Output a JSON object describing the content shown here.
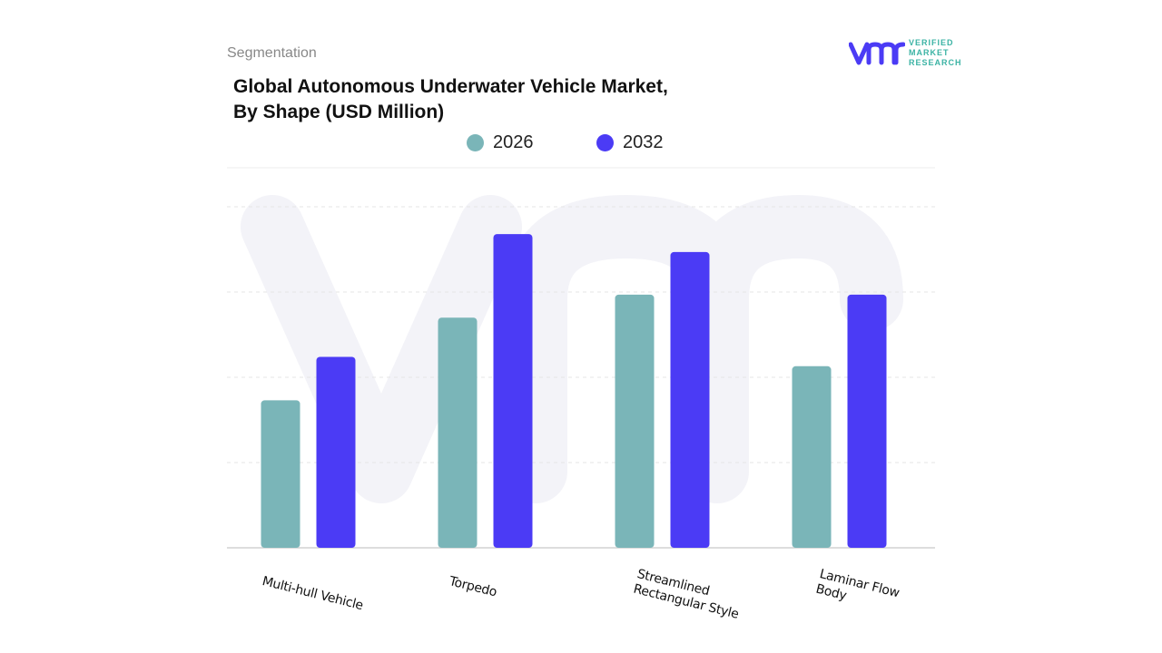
{
  "header": {
    "section": "Segmentation",
    "title_line1": "Global Autonomous Underwater Vehicle Market,",
    "title_line2": "By Shape (USD Million)"
  },
  "logo": {
    "mark": "vmr",
    "line1": "VERIFIED",
    "line2": "MARKET",
    "line3": "RESEARCH",
    "color": "#4b3bf5"
  },
  "chart_data": {
    "type": "bar",
    "title": "Global Autonomous Underwater Vehicle Market, By Shape (USD Million)",
    "categories": [
      "Multi-hull Vehicle",
      "Torpedo",
      "Streamlined Rectangular Style",
      "Laminar Flow Body"
    ],
    "series": [
      {
        "name": "2026",
        "color": "#7ab5b8",
        "values": [
          1.73,
          2.7,
          2.97,
          2.13
        ]
      },
      {
        "name": "2032",
        "color": "#4b3bf5",
        "values": [
          2.24,
          3.68,
          3.47,
          2.97
        ]
      }
    ],
    "ylim": [
      0,
      4
    ],
    "grid": true,
    "legend": "top-center",
    "xlabel": "",
    "ylabel": ""
  }
}
